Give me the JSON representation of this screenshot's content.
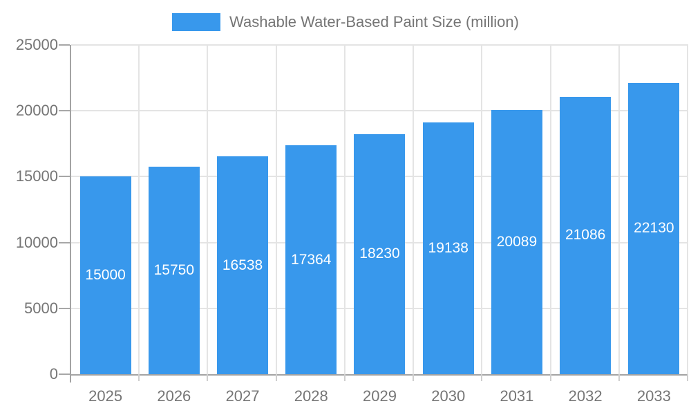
{
  "legend": {
    "swatch_color": "#3898ec"
  },
  "colors": {
    "bar": "#3898ec",
    "grid": "#e4e4e4",
    "axis": "#a3a3a3",
    "tick_y": "#a7a7a7",
    "tick_x": "#cfcfcf",
    "text": "#757575",
    "bar_label": "#ffffff",
    "background": "#ffffff"
  },
  "chart_data": {
    "type": "bar",
    "series_name": "Washable Water-Based Paint Size (million)",
    "categories": [
      "2025",
      "2026",
      "2027",
      "2028",
      "2029",
      "2030",
      "2031",
      "2032",
      "2033"
    ],
    "values": [
      15000,
      15750,
      16538,
      17364,
      18230,
      19138,
      20089,
      21086,
      22130
    ],
    "title": "",
    "xlabel": "",
    "ylabel": "",
    "ylim": [
      0,
      25000
    ],
    "yticks": [
      0,
      5000,
      10000,
      15000,
      20000,
      25000
    ],
    "ytick_labels": [
      "0",
      "5000",
      "10000",
      "15000",
      "20000",
      "25000"
    ],
    "grid": true,
    "legend_position": "top-center",
    "value_labels": "inside-center"
  }
}
